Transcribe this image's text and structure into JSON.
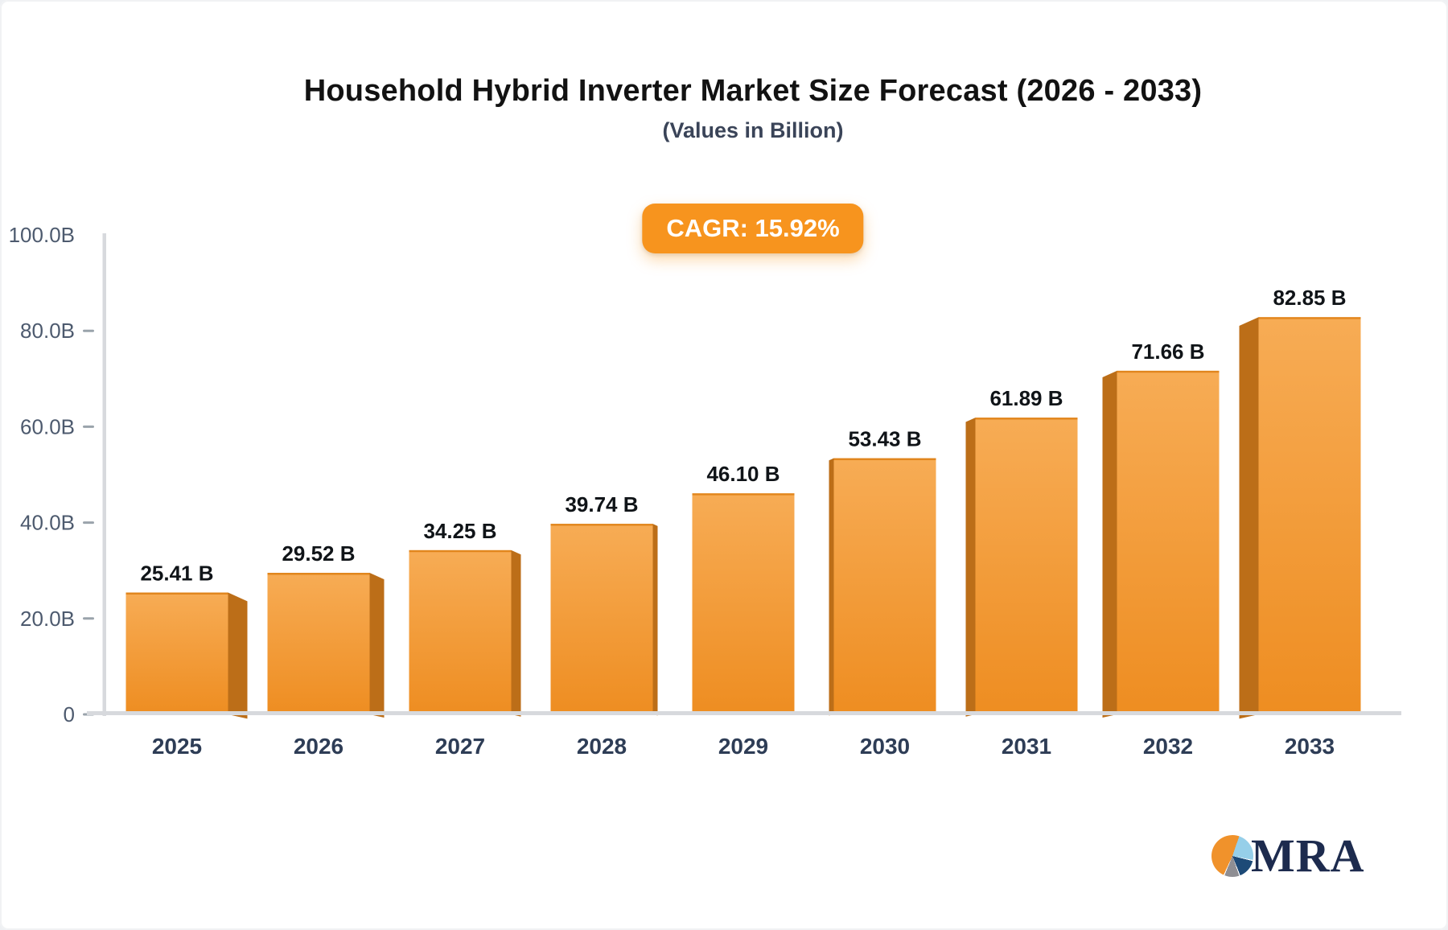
{
  "header": {
    "title": "Household Hybrid Inverter Market Size Forecast (2026 - 2033)",
    "subtitle": "(Values in Billion)"
  },
  "badge": {
    "label": "CAGR: 15.92%",
    "background": "#f7941e",
    "text_color": "#ffffff"
  },
  "chart_data": {
    "type": "bar",
    "title": "Household Hybrid Inverter Market Size Forecast (2026 - 2033)",
    "subtitle": "(Values in Billion)",
    "annotation": "CAGR: 15.92%",
    "categories": [
      "2025",
      "2026",
      "2027",
      "2028",
      "2029",
      "2030",
      "2031",
      "2032",
      "2033"
    ],
    "values": [
      25.41,
      29.52,
      34.25,
      39.74,
      46.1,
      53.43,
      61.89,
      71.66,
      82.85
    ],
    "value_labels": [
      "25.41 B",
      "29.52 B",
      "34.25 B",
      "39.74 B",
      "46.10 B",
      "53.43 B",
      "61.89 B",
      "71.66 B",
      "82.85 B"
    ],
    "unit": "Billion",
    "ylim": [
      0,
      100
    ],
    "y_ticks": [
      {
        "value": 100,
        "label": "100.0B",
        "dash": false
      },
      {
        "value": 80,
        "label": "80.0B",
        "dash": true
      },
      {
        "value": 60,
        "label": "60.0B",
        "dash": true
      },
      {
        "value": 40,
        "label": "40.0B",
        "dash": true
      },
      {
        "value": 20,
        "label": "20.0B",
        "dash": true
      },
      {
        "value": 0,
        "label": "0",
        "dash": true
      }
    ],
    "grid": false,
    "legend": "none",
    "style": {
      "bar_front_top": "#f7ac55",
      "bar_front_bottom": "#ee8d21",
      "bar_side": "#bc6e18",
      "bar_top_stroke": "#e1861e",
      "axis_line_color": "#d7d9dd",
      "tick_dash_color": "#9aa3ab",
      "value_label_color": "#101418",
      "axis_label_color": "#4d5a6e",
      "category_label_color": "#2e3d56"
    }
  },
  "logo": {
    "text": "MRA",
    "text_color": "#1d2b4e",
    "pie_colors": {
      "orange": "#f0922b",
      "light_blue": "#96cfe9",
      "navy": "#1d4a77",
      "gray": "#8e8e93"
    }
  }
}
